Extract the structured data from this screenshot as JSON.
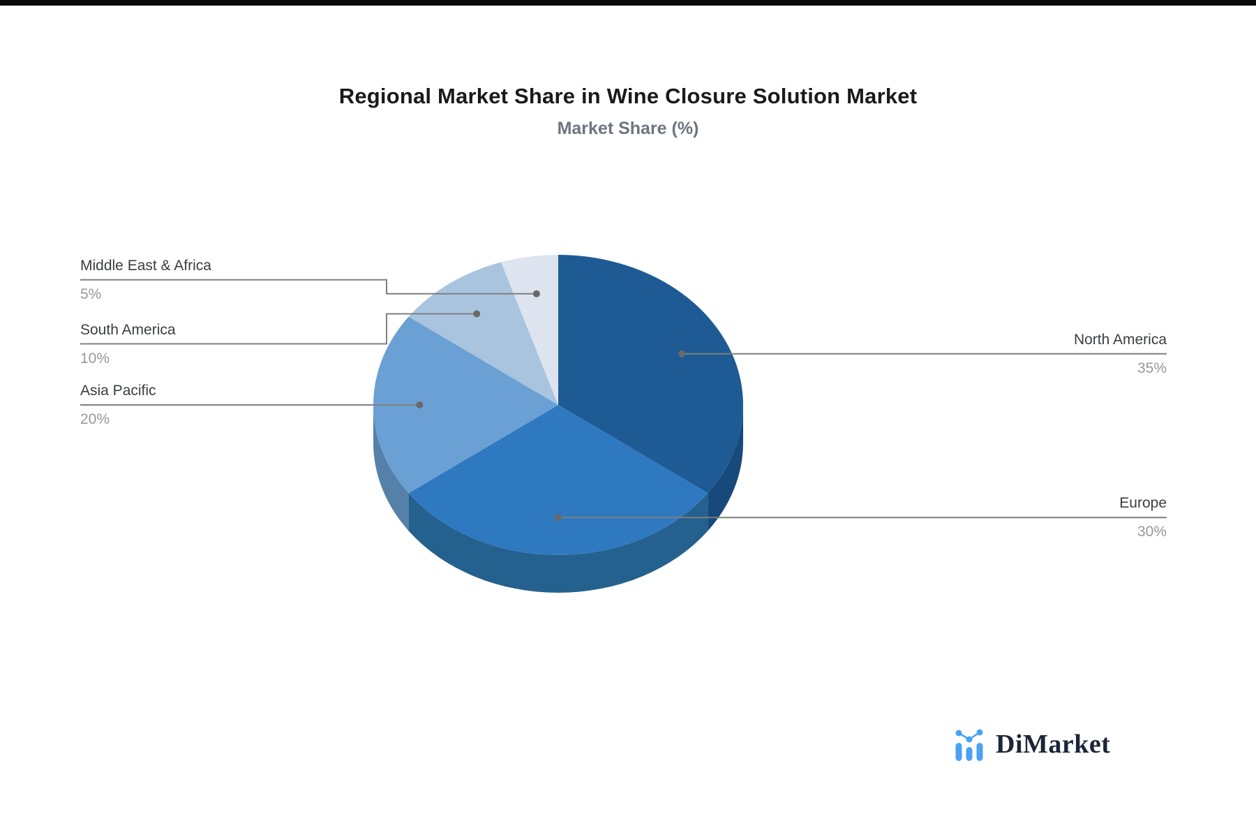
{
  "title": "Regional Market Share in Wine Closure Solution Market",
  "subtitle": "Market Share (%)",
  "chart_data": {
    "type": "pie",
    "title": "Regional Market Share in Wine Closure Solution Market",
    "subtitle": "Market Share (%)",
    "unit": "%",
    "style_3d": true,
    "start_angle": "12-o-clock",
    "direction": "clockwise",
    "legend_position": "callout-labels",
    "series": [
      {
        "name": "North America",
        "value": 35,
        "pct_label": "35%",
        "color": "#1e5b95",
        "side_color": "#17497a",
        "label_side": "right"
      },
      {
        "name": "Europe",
        "value": 30,
        "pct_label": "30%",
        "color": "#2e79c0",
        "side_color": "#25618f",
        "label_side": "right"
      },
      {
        "name": "Asia Pacific",
        "value": 20,
        "pct_label": "20%",
        "color": "#6ba0d4",
        "side_color": "#5581a8",
        "label_side": "left"
      },
      {
        "name": "South America",
        "value": 10,
        "pct_label": "10%",
        "color": "#a9c4df",
        "side_color": "#84a6c4",
        "label_side": "left"
      },
      {
        "name": "Middle East & Africa",
        "value": 5,
        "pct_label": "5%",
        "color": "#dde4ef",
        "side_color": "#b5c3d6",
        "label_side": "left"
      }
    ]
  },
  "logo": {
    "text": "DiMarket",
    "bar_color": "#4aa2f2",
    "text_color": "#1b2638"
  },
  "style": {
    "connector_color": "#7f7f7f",
    "dot_color": "#696969",
    "name_color": "#3a3d42",
    "pct_color": "#98989a",
    "title_color": "#1a1a1a",
    "subtitle_color": "#6d7580"
  }
}
